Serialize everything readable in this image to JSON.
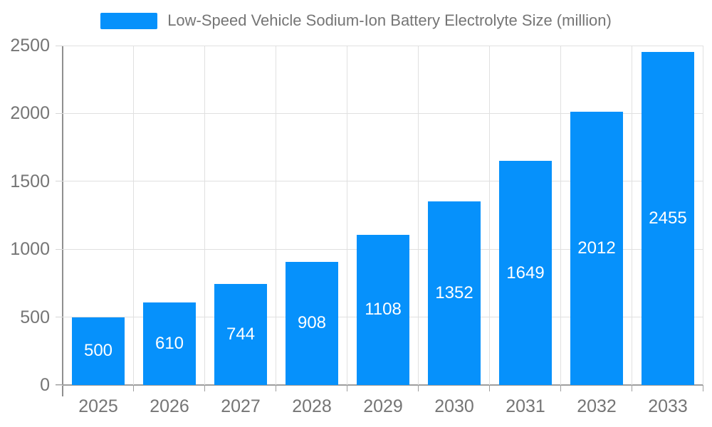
{
  "legend": {
    "label": "Low-Speed Vehicle Sodium-Ion Battery Electrolyte Size (million)"
  },
  "colors": {
    "bar": "#0691FB",
    "bar_label": "#ffffff",
    "axis_text": "#757575",
    "grid_line": "#e0e0e0",
    "axis_line": "#9e9e9e"
  },
  "chart_data": {
    "type": "bar",
    "title": "Low-Speed Vehicle Sodium-Ion Battery Electrolyte Size (million)",
    "categories": [
      "2025",
      "2026",
      "2027",
      "2028",
      "2029",
      "2030",
      "2031",
      "2032",
      "2033"
    ],
    "values": [
      500,
      610,
      744,
      908,
      1108,
      1352,
      1649,
      2012,
      2455
    ],
    "xlabel": "",
    "ylabel": "",
    "ylim": [
      0,
      2500
    ],
    "yticks": [
      0,
      500,
      1000,
      1500,
      2000,
      2500
    ],
    "grid": true,
    "legend_position": "top",
    "bar_value_labels": "inside-center"
  }
}
